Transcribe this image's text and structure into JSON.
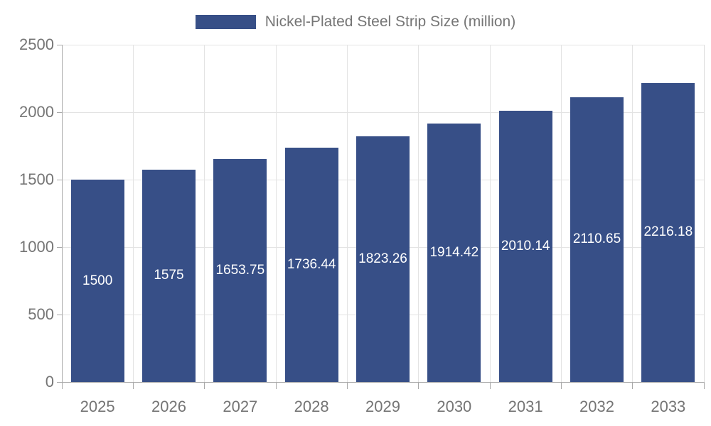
{
  "legend": {
    "label": "Nickel-Plated Steel Strip Size (million)"
  },
  "chart_data": {
    "type": "bar",
    "title": "Nickel-Plated Steel Strip Size (million)",
    "categories": [
      "2025",
      "2026",
      "2027",
      "2028",
      "2029",
      "2030",
      "2031",
      "2032",
      "2033"
    ],
    "series": [
      {
        "name": "Nickel-Plated Steel Strip Size (million)",
        "values": [
          1500,
          1575,
          1653.75,
          1736.44,
          1823.26,
          1914.42,
          2010.14,
          2110.65,
          2216.18
        ]
      }
    ],
    "value_labels": [
      "1500",
      "1575",
      "1653.75",
      "1736.44",
      "1823.26",
      "1914.42",
      "2010.14",
      "2110.65",
      "2216.18"
    ],
    "xlabel": "",
    "ylabel": "",
    "ylim": [
      0,
      2500
    ],
    "y_ticks": [
      0,
      500,
      1000,
      1500,
      2000,
      2500
    ],
    "grid": true,
    "legend_position": "top",
    "colors": {
      "bar": "#374f87",
      "value_label": "#ffffff",
      "axis_text": "#757575",
      "axis_line": "#a9a9a9",
      "gridline": "#e3e3e3",
      "right_spine": "#dcdcdc"
    }
  }
}
